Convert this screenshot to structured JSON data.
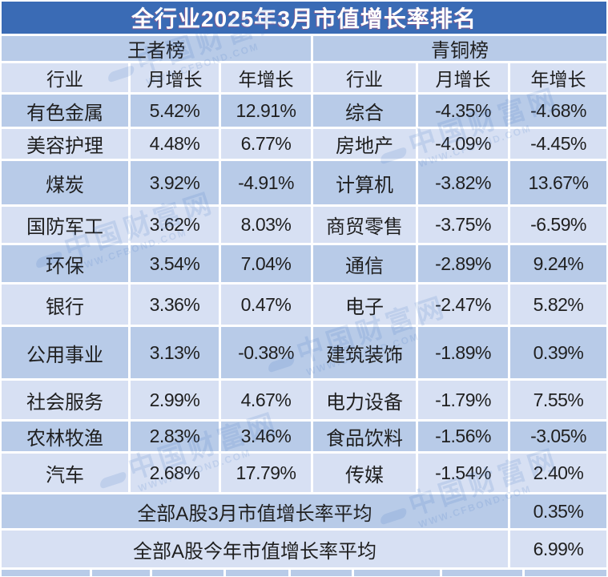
{
  "chart_data": {
    "type": "table",
    "title": "全行业2025年3月市值增长率排名",
    "tables": [
      {
        "name": "王者榜",
        "columns": [
          "行业",
          "月增长",
          "年增长"
        ],
        "rows": [
          [
            "有色金属",
            "5.42%",
            "12.91%"
          ],
          [
            "美容护理",
            "4.48%",
            "6.77%"
          ],
          [
            "煤炭",
            "3.92%",
            "-4.91%"
          ],
          [
            "国防军工",
            "3.62%",
            "8.03%"
          ],
          [
            "环保",
            "3.54%",
            "7.04%"
          ],
          [
            "银行",
            "3.36%",
            "0.47%"
          ],
          [
            "公用事业",
            "3.13%",
            "-0.38%"
          ],
          [
            "社会服务",
            "2.99%",
            "4.67%"
          ],
          [
            "农林牧渔",
            "2.83%",
            "3.46%"
          ],
          [
            "汽车",
            "2.68%",
            "17.79%"
          ]
        ]
      },
      {
        "name": "青铜榜",
        "columns": [
          "行业",
          "月增长",
          "年增长"
        ],
        "rows": [
          [
            "综合",
            "-4.35%",
            "-4.68%"
          ],
          [
            "房地产",
            "-4.09%",
            "-4.45%"
          ],
          [
            "计算机",
            "-3.82%",
            "13.67%"
          ],
          [
            "商贸零售",
            "-3.75%",
            "-6.59%"
          ],
          [
            "通信",
            "-2.89%",
            "9.24%"
          ],
          [
            "电子",
            "-2.47%",
            "5.82%"
          ],
          [
            "建筑装饰",
            "-1.89%",
            "0.39%"
          ],
          [
            "电力设备",
            "-1.79%",
            "7.55%"
          ],
          [
            "食品饮料",
            "-1.56%",
            "-3.05%"
          ],
          [
            "传媒",
            "-1.54%",
            "2.40%"
          ]
        ]
      }
    ],
    "summary": [
      {
        "label": "全部A股3月市值增长率平均",
        "value": "0.35%"
      },
      {
        "label": "全部A股今年市值增长率平均",
        "value": "6.99%"
      }
    ],
    "layout_hints": {
      "grid": "white gridlines",
      "alternating_rows": true
    }
  },
  "watermark": {
    "brand": "中国财富网",
    "url": "WWW.CFBOND.COM"
  },
  "colors": {
    "title_bg": "#3A6BB5",
    "row_dark": "#B8CBE8",
    "row_light": "#D7E0F3",
    "grid_line": "#FFFFFF",
    "text": "#1F1F1F",
    "watermark": "#3F74C4"
  }
}
